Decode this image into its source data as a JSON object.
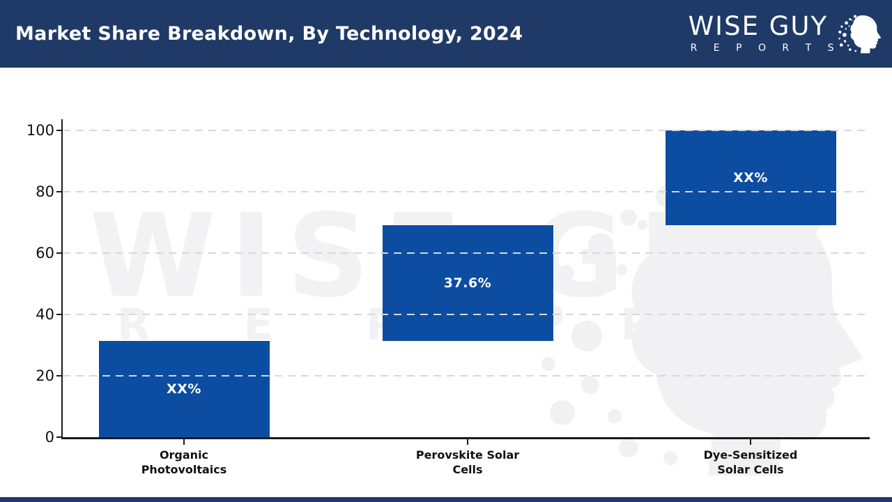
{
  "header": {
    "title": "Market Share Breakdown, By Technology, 2024",
    "bg_color": "#1f3a66",
    "logo": {
      "line1": "WISE GUY",
      "line2": "R E P O R T S",
      "head_icon": "dotted-head-profile"
    }
  },
  "watermark": {
    "line1": "WISE GUY",
    "line2": "R E P O R T S",
    "head_icon": "dotted-head-profile"
  },
  "chart_data": {
    "type": "bar",
    "variant": "floating-waterfall",
    "title": "Market Share Breakdown, By Technology, 2024",
    "xlabel": "",
    "ylabel": "",
    "ylim": [
      0,
      105
    ],
    "yticks": [
      0,
      20,
      40,
      60,
      80,
      100
    ],
    "grid": "horizontal-dashed",
    "grid_color": "#d8d8d8",
    "axis_color": "#1a1a1a",
    "bar_color": "#0c4da2",
    "bar_label_color": "#ffffff",
    "categories": [
      [
        "Organic",
        "Photovoltaics"
      ],
      [
        "Perovskite Solar",
        "Cells"
      ],
      [
        "Dye-Sensitized",
        "Solar Cells"
      ]
    ],
    "segments": [
      {
        "category_index": 0,
        "start": 0,
        "end": 31.4,
        "label": "XX%"
      },
      {
        "category_index": 1,
        "start": 31.4,
        "end": 69.0,
        "label": "37.6%"
      },
      {
        "category_index": 2,
        "start": 69.0,
        "end": 100.0,
        "label": "XX%"
      }
    ]
  }
}
